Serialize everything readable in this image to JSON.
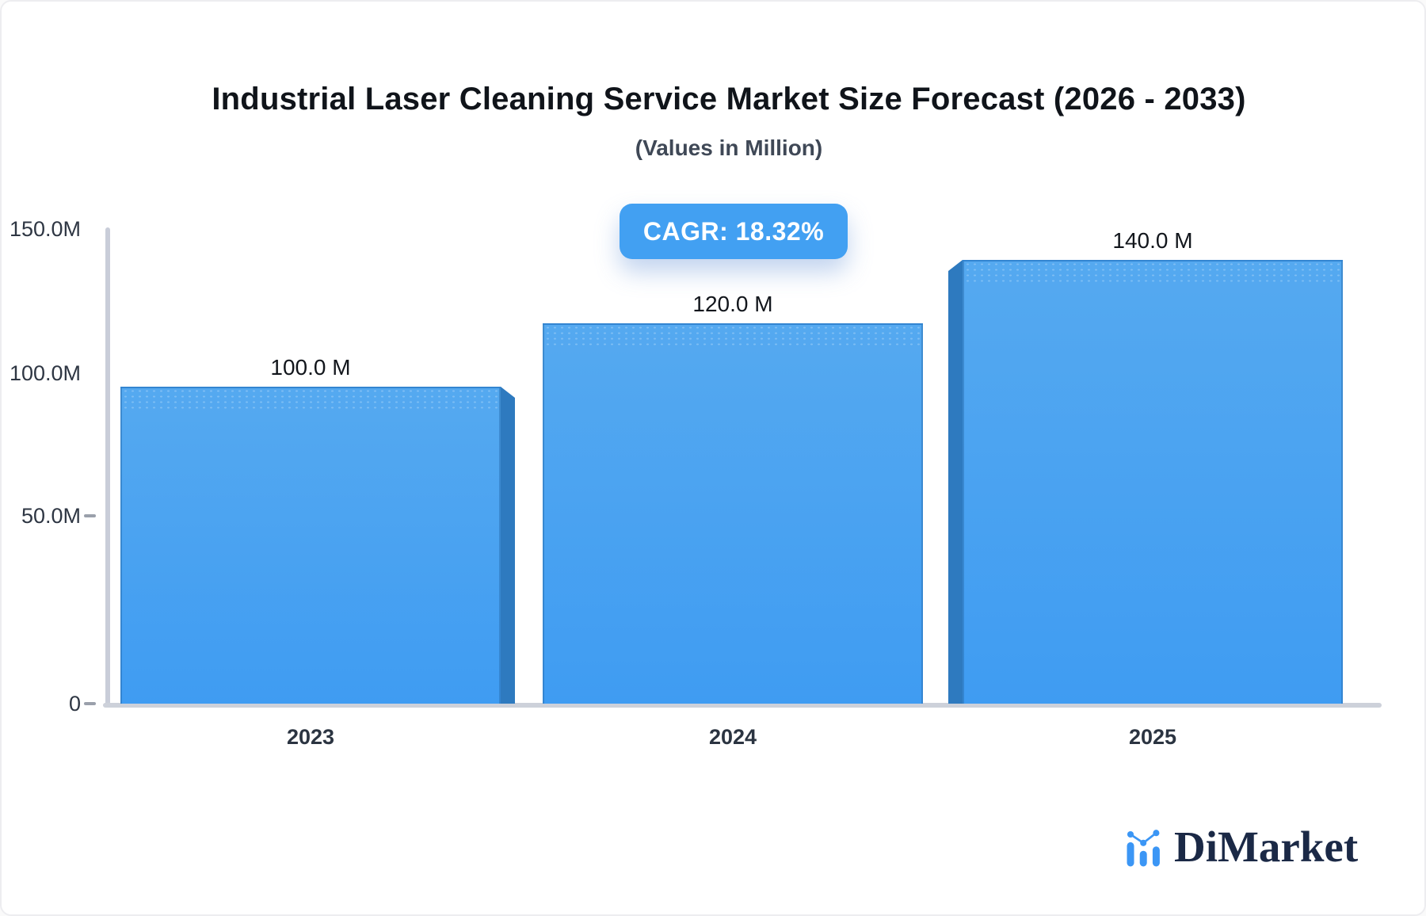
{
  "chart_data": {
    "type": "bar",
    "title": "Industrial Laser Cleaning Service Market Size Forecast (2026 - 2033)",
    "subtitle": "(Values in Million)",
    "badge": "CAGR: 18.32%",
    "categories": [
      "2023",
      "2024",
      "2025"
    ],
    "values": [
      100.0,
      120.0,
      140.0
    ],
    "value_labels": [
      "100.0 M",
      "120.0 M",
      "140.0 M"
    ],
    "unit": "Million",
    "xlabel": "",
    "ylabel": "",
    "grid": false,
    "legend": false,
    "y_axis": {
      "ylim": [
        0,
        150
      ],
      "ticks": [
        {
          "value": 150,
          "label": "150.0M"
        },
        {
          "value": 100,
          "label": "100.0M"
        },
        {
          "value": 50,
          "label": "50.0M"
        },
        {
          "value": 0,
          "label": "0"
        }
      ]
    },
    "colors": {
      "bar_top": "#55a9f0",
      "bar_bottom": "#3f9cf2",
      "bar_side": "#2e7abf",
      "badge_bg": "#42a0f2",
      "badge_text": "#ffffff"
    }
  },
  "branding": {
    "name": "DiMarket",
    "icon": "bar-line-chart-icon",
    "icon_color": "#3b96f5",
    "text_color": "#1b2946"
  }
}
